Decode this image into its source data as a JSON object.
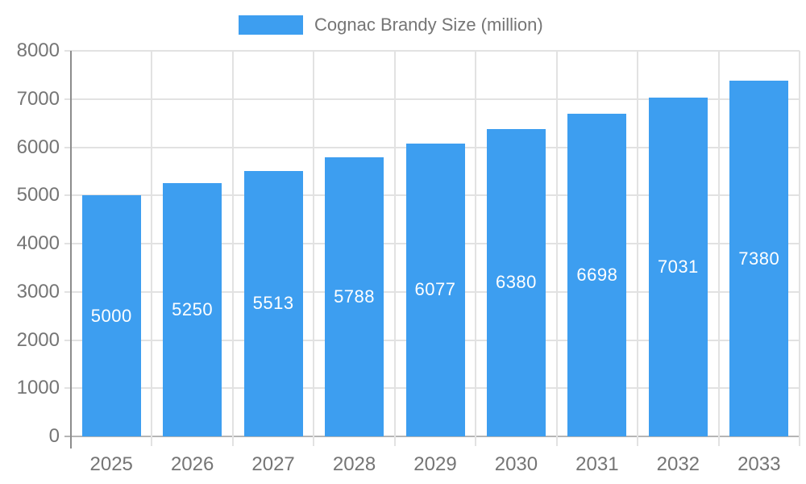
{
  "chart_data": {
    "type": "bar",
    "title": "Cognac Brandy Size (million)",
    "legend": [
      "Cognac Brandy Size (million)"
    ],
    "legend_position": "top",
    "categories": [
      "2025",
      "2026",
      "2027",
      "2028",
      "2029",
      "2030",
      "2031",
      "2032",
      "2033"
    ],
    "series": [
      {
        "name": "Cognac Brandy Size (million)",
        "values": [
          5000,
          5250,
          5513,
          5788,
          6077,
          6380,
          6698,
          7031,
          7380
        ]
      }
    ],
    "bar_value_labels": [
      "5000",
      "5250",
      "5513",
      "5788",
      "6077",
      "6380",
      "6698",
      "7031",
      "7380"
    ],
    "xlabel": "",
    "ylabel": "",
    "ylim": [
      0,
      8000
    ],
    "yticks": [
      0,
      1000,
      2000,
      3000,
      4000,
      5000,
      6000,
      7000,
      8000
    ],
    "grid": true,
    "colors": {
      "bar": "#3D9EF0",
      "bar_label": "#FFFFFF",
      "axis_text": "#757575",
      "grid_line": "#E2E2E2",
      "zero_line": "#B5B5B5",
      "axis_line": "#8C8C8C",
      "background": "#FFFFFF"
    }
  }
}
